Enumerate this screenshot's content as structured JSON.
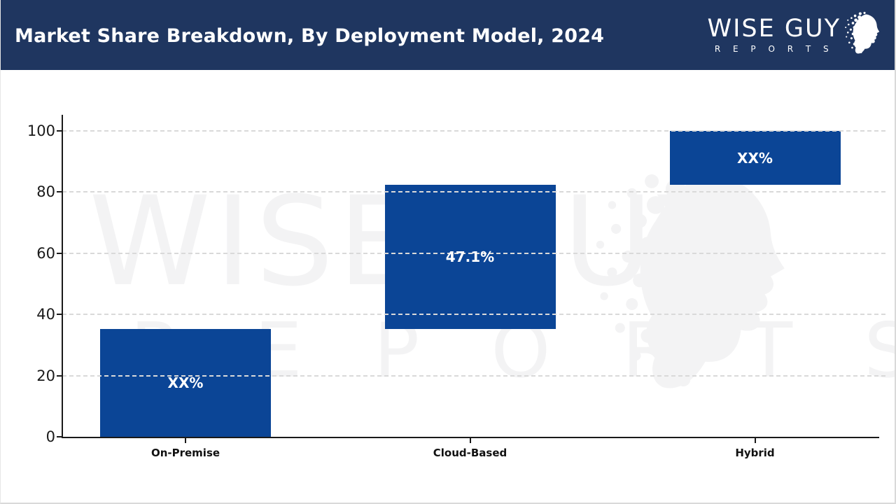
{
  "header": {
    "title": "Market Share Breakdown, By Deployment Model, 2024",
    "logo": {
      "name": "WISE GUY",
      "tagline": "R E P O R T S"
    }
  },
  "watermark": {
    "name": "WISE GUY",
    "tagline": "R E P O R T S"
  },
  "chart_data": {
    "type": "bar",
    "variant": "waterfall",
    "title": "Market Share Breakdown, By Deployment Model, 2024",
    "categories": [
      "On-Premise",
      "Cloud-Based",
      "Hybrid"
    ],
    "segments": [
      {
        "category": "On-Premise",
        "label": "XX%",
        "start": 0,
        "end": 35.2
      },
      {
        "category": "Cloud-Based",
        "label": "47.1%",
        "start": 35.2,
        "end": 82.3
      },
      {
        "category": "Hybrid",
        "label": "XX%",
        "start": 82.3,
        "end": 100
      }
    ],
    "yticks": [
      0,
      20,
      40,
      60,
      80,
      100
    ],
    "ylim": [
      0,
      105
    ],
    "xlabel": "",
    "ylabel": "",
    "grid": "horizontal-dashed",
    "legend": "none",
    "bar_color": "#0B4596",
    "label_color": "#FFFFFF"
  },
  "colors": {
    "header_bg": "#1F3660",
    "bar": "#0B4596",
    "grid": "#D9D9D9",
    "axis": "#1A1A1A",
    "watermark": "#F3F3F4",
    "page_bg": "#FFFFFF",
    "border": "#D9D9D9"
  }
}
